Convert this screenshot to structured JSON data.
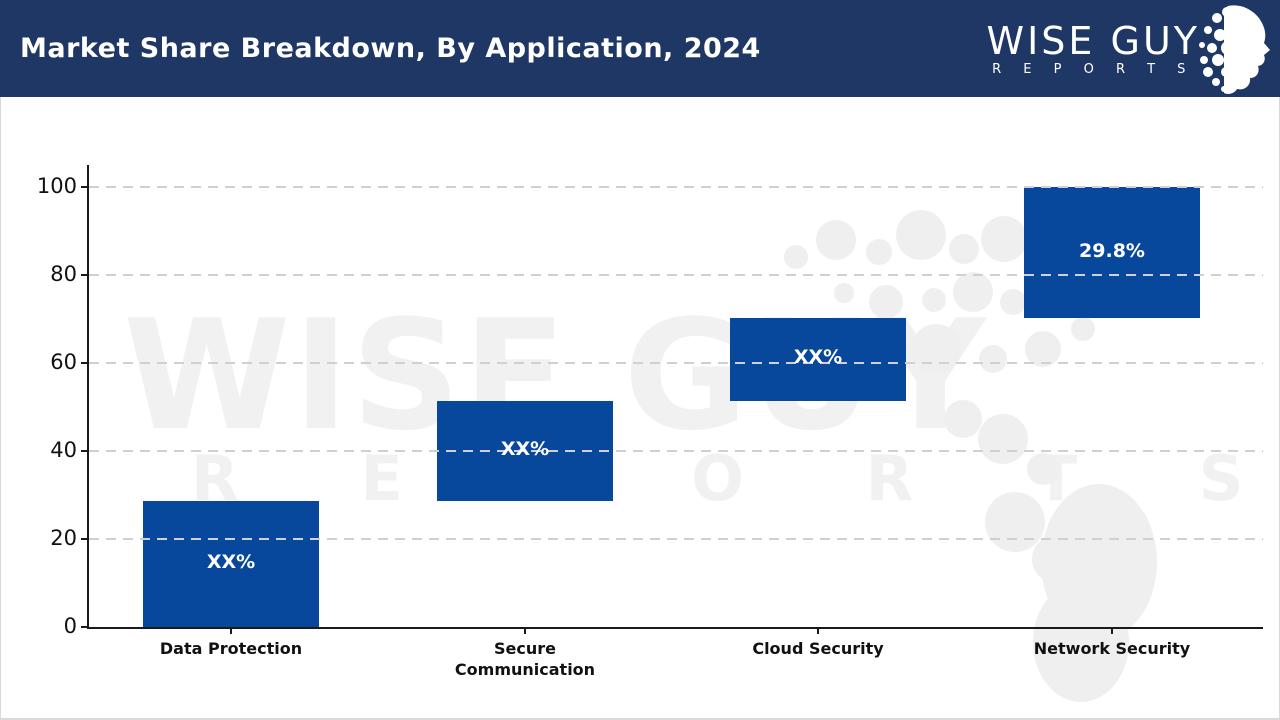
{
  "header": {
    "title": "Market Share Breakdown, By Application, 2024",
    "bg_color": "#1F3765",
    "brand": {
      "name": "WISE GUY",
      "sub": "R E P O R T S"
    }
  },
  "watermark": {
    "line1": "WISE GUY",
    "line2": "R E P O R T S",
    "color": "#f1f1f1"
  },
  "chart_data": {
    "type": "bar",
    "subtype": "waterfall",
    "title": "Market Share Breakdown, By Application, 2024",
    "categories": [
      "Data Protection",
      "Secure Communication",
      "Cloud Security",
      "Network Security"
    ],
    "bar_labels": [
      "XX%",
      "XX%",
      "XX%",
      "29.8%"
    ],
    "segment_start": [
      0,
      28.6,
      51.4,
      70.2
    ],
    "segment_end": [
      28.6,
      51.4,
      70.2,
      100
    ],
    "shown_value": [
      null,
      null,
      null,
      29.8
    ],
    "ylim": [
      0,
      100
    ],
    "yticks": [
      0,
      20,
      40,
      60,
      80,
      100
    ],
    "grid": "horizontal-dashed",
    "legend": "none",
    "bar_color": "#07489C",
    "bar_label_color": "#FFFFFF",
    "axis_color": "#1a1a1a"
  }
}
